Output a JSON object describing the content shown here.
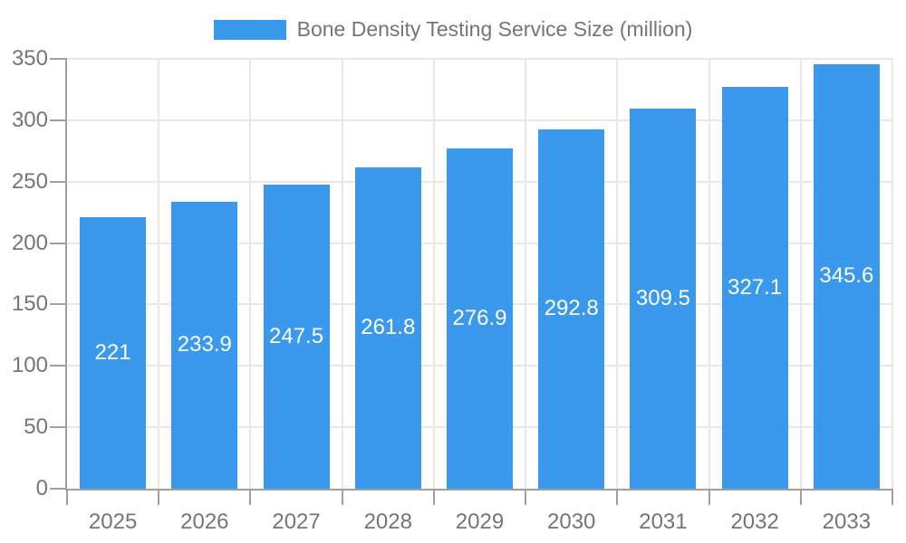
{
  "legend": {
    "label": "Bone Density Testing Service Size (million)"
  },
  "colors": {
    "bar": "#3A99EC",
    "grid": "#E8E8E8",
    "axis": "#A0A0A0",
    "tick": "#A0A0A0",
    "axis_label": "#757575",
    "legend_text": "#757575",
    "value_label": "#FFFFFF",
    "background": "#FFFFFF"
  },
  "chart_data": {
    "type": "bar",
    "title": "Bone Density Testing Service Size (million)",
    "categories": [
      "2025",
      "2026",
      "2027",
      "2028",
      "2029",
      "2030",
      "2031",
      "2032",
      "2033"
    ],
    "values": [
      221,
      233.9,
      247.5,
      261.8,
      276.9,
      292.8,
      309.5,
      327.1,
      345.6
    ],
    "value_labels": [
      "221",
      "233.9",
      "247.5",
      "261.8",
      "276.9",
      "292.8",
      "309.5",
      "327.1",
      "345.6"
    ],
    "xlabel": "",
    "ylabel": "",
    "ylim": [
      0,
      350
    ],
    "y_ticks": [
      0,
      50,
      100,
      150,
      200,
      250,
      300,
      350
    ],
    "grid": true,
    "legend_position": "top",
    "value_label_position": "inside-center"
  }
}
